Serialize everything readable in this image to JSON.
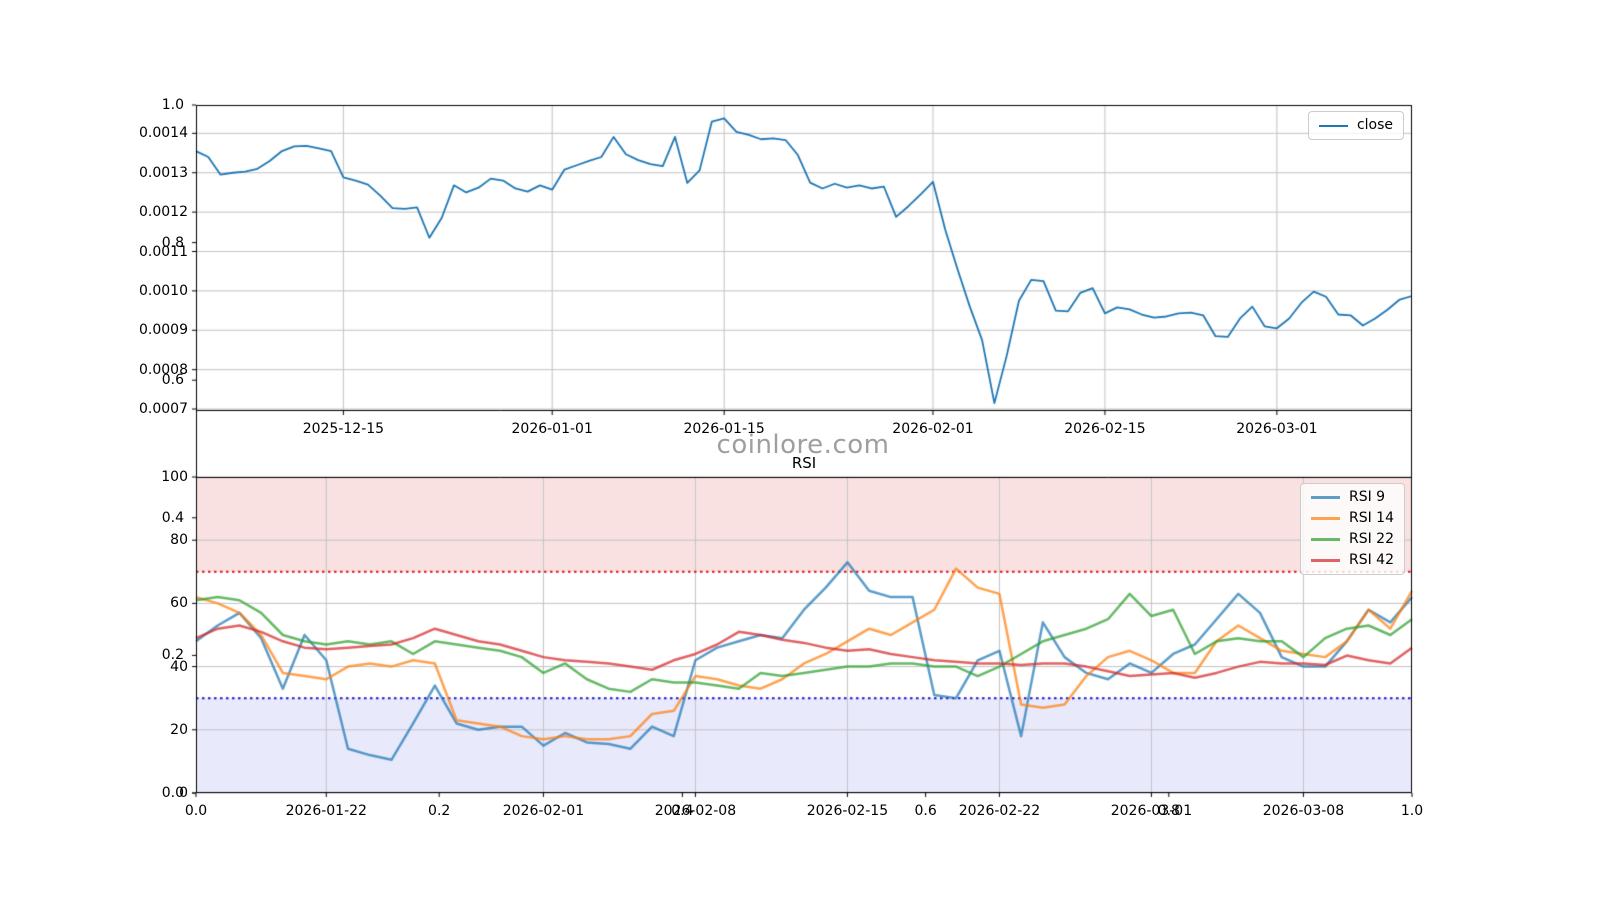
{
  "watermark": "coinlore.com",
  "overlay_axis": {
    "x_tick_labels": [
      "0.0",
      "0.2",
      "0.4",
      "0.6",
      "0.8",
      "1.0"
    ],
    "y_tick_labels": [
      "0.0",
      "0.2",
      "0.4",
      "0.6",
      "0.8",
      "1.0"
    ]
  },
  "chart_data": [
    {
      "type": "line",
      "name": "price-chart",
      "grid": true,
      "legend_position": "upper-right",
      "x_tick_labels": [
        "2025-12-15",
        "2026-01-01",
        "2026-01-15",
        "2026-02-01",
        "2026-02-15",
        "2026-03-01"
      ],
      "x_tick_indices": [
        12,
        29,
        43,
        60,
        74,
        88
      ],
      "y_tick_labels": [
        "0.0007",
        "0.0008",
        "0.0009",
        "0.0010",
        "0.0011",
        "0.0012",
        "0.0013",
        "0.0014"
      ],
      "y_tick_values": [
        0.0007,
        0.0008,
        0.0009,
        0.001,
        0.0011,
        0.0012,
        0.0013,
        0.0014
      ],
      "ylim": [
        0.000695,
        0.001472
      ],
      "series": [
        {
          "name": "close",
          "color": "#1f77b4",
          "width": 1.8,
          "values": [
            0.001355,
            0.00134,
            0.001295,
            0.0013,
            0.001303,
            0.00131,
            0.00133,
            0.001355,
            0.001367,
            0.001368,
            0.001362,
            0.001355,
            0.001288,
            0.00128,
            0.00127,
            0.001242,
            0.00121,
            0.001208,
            0.001212,
            0.001135,
            0.001185,
            0.001268,
            0.00125,
            0.001262,
            0.001285,
            0.00128,
            0.00126,
            0.001252,
            0.001268,
            0.001257,
            0.001308,
            0.001319,
            0.00133,
            0.00134,
            0.001391,
            0.001347,
            0.001332,
            0.001322,
            0.001317,
            0.001391,
            0.001274,
            0.001306,
            0.00143,
            0.001438,
            0.001404,
            0.001396,
            0.001385,
            0.001387,
            0.001383,
            0.001345,
            0.001275,
            0.00126,
            0.001272,
            0.001262,
            0.001268,
            0.00126,
            0.001265,
            0.001188,
            0.001215,
            0.001245,
            0.001277,
            0.001155,
            0.001055,
            0.00096,
            0.000875,
            0.000715,
            0.000835,
            0.000975,
            0.001028,
            0.001025,
            0.00095,
            0.000948,
            0.000995,
            0.001007,
            0.000943,
            0.000958,
            0.000953,
            0.00094,
            0.000932,
            0.000935,
            0.000943,
            0.000945,
            0.000938,
            0.000885,
            0.000883,
            0.00093,
            0.00096,
            0.00091,
            0.000905,
            0.00093,
            0.00097,
            0.000998,
            0.000985,
            0.00094,
            0.000938,
            0.000912,
            0.00093,
            0.000952,
            0.000978,
            0.000987
          ]
        }
      ]
    },
    {
      "type": "line",
      "name": "rsi-chart",
      "title": "RSI",
      "grid": true,
      "legend_position": "upper-right",
      "x_tick_labels": [
        "2026-01-22",
        "2026-02-01",
        "2026-02-08",
        "2026-02-15",
        "2026-02-22",
        "2026-03-01",
        "2026-03-08"
      ],
      "x_tick_indices": [
        6,
        16,
        23,
        30,
        37,
        44,
        51
      ],
      "y_tick_labels": [
        "0",
        "20",
        "40",
        "60",
        "80",
        "100"
      ],
      "y_tick_values": [
        0,
        20,
        40,
        60,
        80,
        100
      ],
      "ylim": [
        0,
        100
      ],
      "overbought": {
        "level": 70,
        "line_color": "#e01020",
        "band_color": "rgba(214,39,40,0.14)"
      },
      "oversold": {
        "level": 30,
        "line_color": "#1414cc",
        "band_color": "rgba(85,85,230,0.13)"
      },
      "series": [
        {
          "name": "RSI 9",
          "color": "rgba(31,119,180,0.72)",
          "width": 2.5,
          "values": [
            48,
            53,
            57,
            49,
            33,
            50,
            42,
            14,
            12,
            10.5,
            22,
            34,
            22,
            20,
            21,
            21,
            15,
            19,
            16,
            15.5,
            14,
            21,
            18,
            42,
            46,
            48,
            50,
            49,
            58,
            65,
            73,
            64,
            62,
            62,
            31,
            30,
            42,
            45,
            18,
            54,
            43,
            38,
            36,
            41,
            38,
            44,
            47,
            55,
            63,
            57,
            43,
            40,
            40,
            48,
            58,
            54,
            62
          ]
        },
        {
          "name": "RSI 14",
          "color": "rgba(255,127,14,0.72)",
          "width": 2.5,
          "values": [
            62,
            60,
            57,
            50,
            38,
            37,
            36,
            40,
            41,
            40,
            42,
            41,
            23,
            22,
            21,
            18,
            17,
            18,
            17,
            17,
            18,
            25,
            26,
            37,
            36,
            34,
            33,
            36,
            41,
            44,
            48,
            52,
            50,
            54,
            58,
            71,
            65,
            63,
            28,
            27,
            28,
            37,
            43,
            45,
            42,
            38,
            38,
            48,
            53,
            49,
            45,
            44,
            43,
            48,
            58,
            52,
            64
          ]
        },
        {
          "name": "RSI 22",
          "color": "rgba(44,160,44,0.72)",
          "width": 2.5,
          "values": [
            61,
            62,
            61,
            57,
            50,
            48,
            47,
            48,
            47,
            48,
            44,
            48,
            47,
            46,
            45,
            43,
            38,
            41,
            36,
            33,
            32,
            36,
            35,
            35,
            34,
            33,
            38,
            37,
            38,
            39,
            40,
            40,
            41,
            41,
            40,
            40,
            37,
            40,
            44,
            48,
            50,
            52,
            55,
            63,
            56,
            58,
            44,
            48,
            49,
            48,
            48,
            43,
            49,
            52,
            53,
            50,
            55
          ]
        },
        {
          "name": "RSI 42",
          "color": "rgba(214,39,40,0.72)",
          "width": 2.5,
          "values": [
            49,
            52,
            53,
            51,
            48,
            46,
            45.5,
            46,
            46.5,
            47,
            49,
            52,
            50,
            48,
            47,
            45,
            43,
            42,
            41.5,
            41,
            40,
            39,
            42,
            44,
            47,
            51,
            50,
            48.5,
            47.5,
            46,
            45,
            45.5,
            44,
            43,
            42,
            41.5,
            41,
            41,
            40.5,
            41,
            41,
            40,
            38.5,
            37,
            37.5,
            38,
            36.5,
            38,
            40,
            41.5,
            41,
            41,
            40.5,
            43.5,
            42,
            41,
            46
          ]
        }
      ]
    }
  ]
}
